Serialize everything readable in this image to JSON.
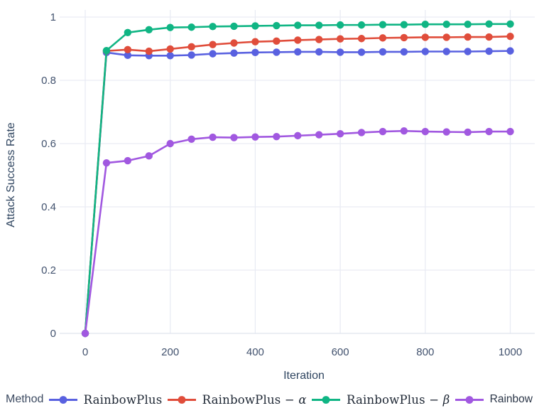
{
  "style": {
    "background": "#ffffff",
    "grid_color": "#e9ecf4",
    "axis_line_color": "#dfe3ee",
    "tick_color": "#42526e",
    "title_color": "#2f4560",
    "legend_title_color": "#3c4a61"
  },
  "legend": {
    "title": "Method"
  },
  "chart_data": {
    "type": "line",
    "title": "",
    "xlabel": "Iteration",
    "ylabel": "Attack Success Rate",
    "xlim": [
      -60,
      1060
    ],
    "ylim": [
      0,
      1
    ],
    "grid": true,
    "legend_position": "bottom",
    "x_ticks": {
      "labels": [
        "0",
        "200",
        "400",
        "600",
        "800",
        "1000"
      ],
      "values": [
        0,
        200,
        400,
        600,
        800,
        1000
      ]
    },
    "y_ticks": {
      "labels": [
        "0",
        "0.2",
        "0.4",
        "0.6",
        "0.8",
        "1"
      ],
      "values": [
        0,
        0.2,
        0.4,
        0.6,
        0.8,
        1
      ]
    },
    "x": [
      0,
      50,
      100,
      150,
      200,
      250,
      300,
      350,
      400,
      450,
      500,
      550,
      600,
      650,
      700,
      750,
      800,
      850,
      900,
      950,
      1000
    ],
    "series": [
      {
        "name": "RainbowPlus",
        "color": "#5961e0",
        "label_font": "serif",
        "values": [
          0,
          0.888,
          0.879,
          0.878,
          0.878,
          0.88,
          0.884,
          0.886,
          0.888,
          0.889,
          0.89,
          0.89,
          0.889,
          0.889,
          0.89,
          0.89,
          0.891,
          0.891,
          0.891,
          0.892,
          0.893
        ]
      },
      {
        "name": "RainbowPlus − α",
        "color": "#e04d3b",
        "label_font": "serif",
        "values": [
          0,
          0.893,
          0.897,
          0.892,
          0.899,
          0.906,
          0.913,
          0.918,
          0.922,
          0.924,
          0.927,
          0.929,
          0.931,
          0.932,
          0.934,
          0.935,
          0.936,
          0.936,
          0.937,
          0.937,
          0.939
        ]
      },
      {
        "name": "RainbowPlus − β",
        "color": "#10b584",
        "label_font": "serif",
        "values": [
          0,
          0.894,
          0.951,
          0.96,
          0.967,
          0.968,
          0.97,
          0.971,
          0.972,
          0.973,
          0.974,
          0.974,
          0.975,
          0.975,
          0.976,
          0.976,
          0.977,
          0.977,
          0.977,
          0.978,
          0.978
        ]
      },
      {
        "name": "Rainbow",
        "color": "#a158e0",
        "label_font": "sans",
        "values": [
          0,
          0.539,
          0.546,
          0.561,
          0.6,
          0.614,
          0.62,
          0.619,
          0.621,
          0.622,
          0.625,
          0.628,
          0.631,
          0.635,
          0.638,
          0.64,
          0.638,
          0.637,
          0.636,
          0.638,
          0.638
        ]
      }
    ]
  }
}
